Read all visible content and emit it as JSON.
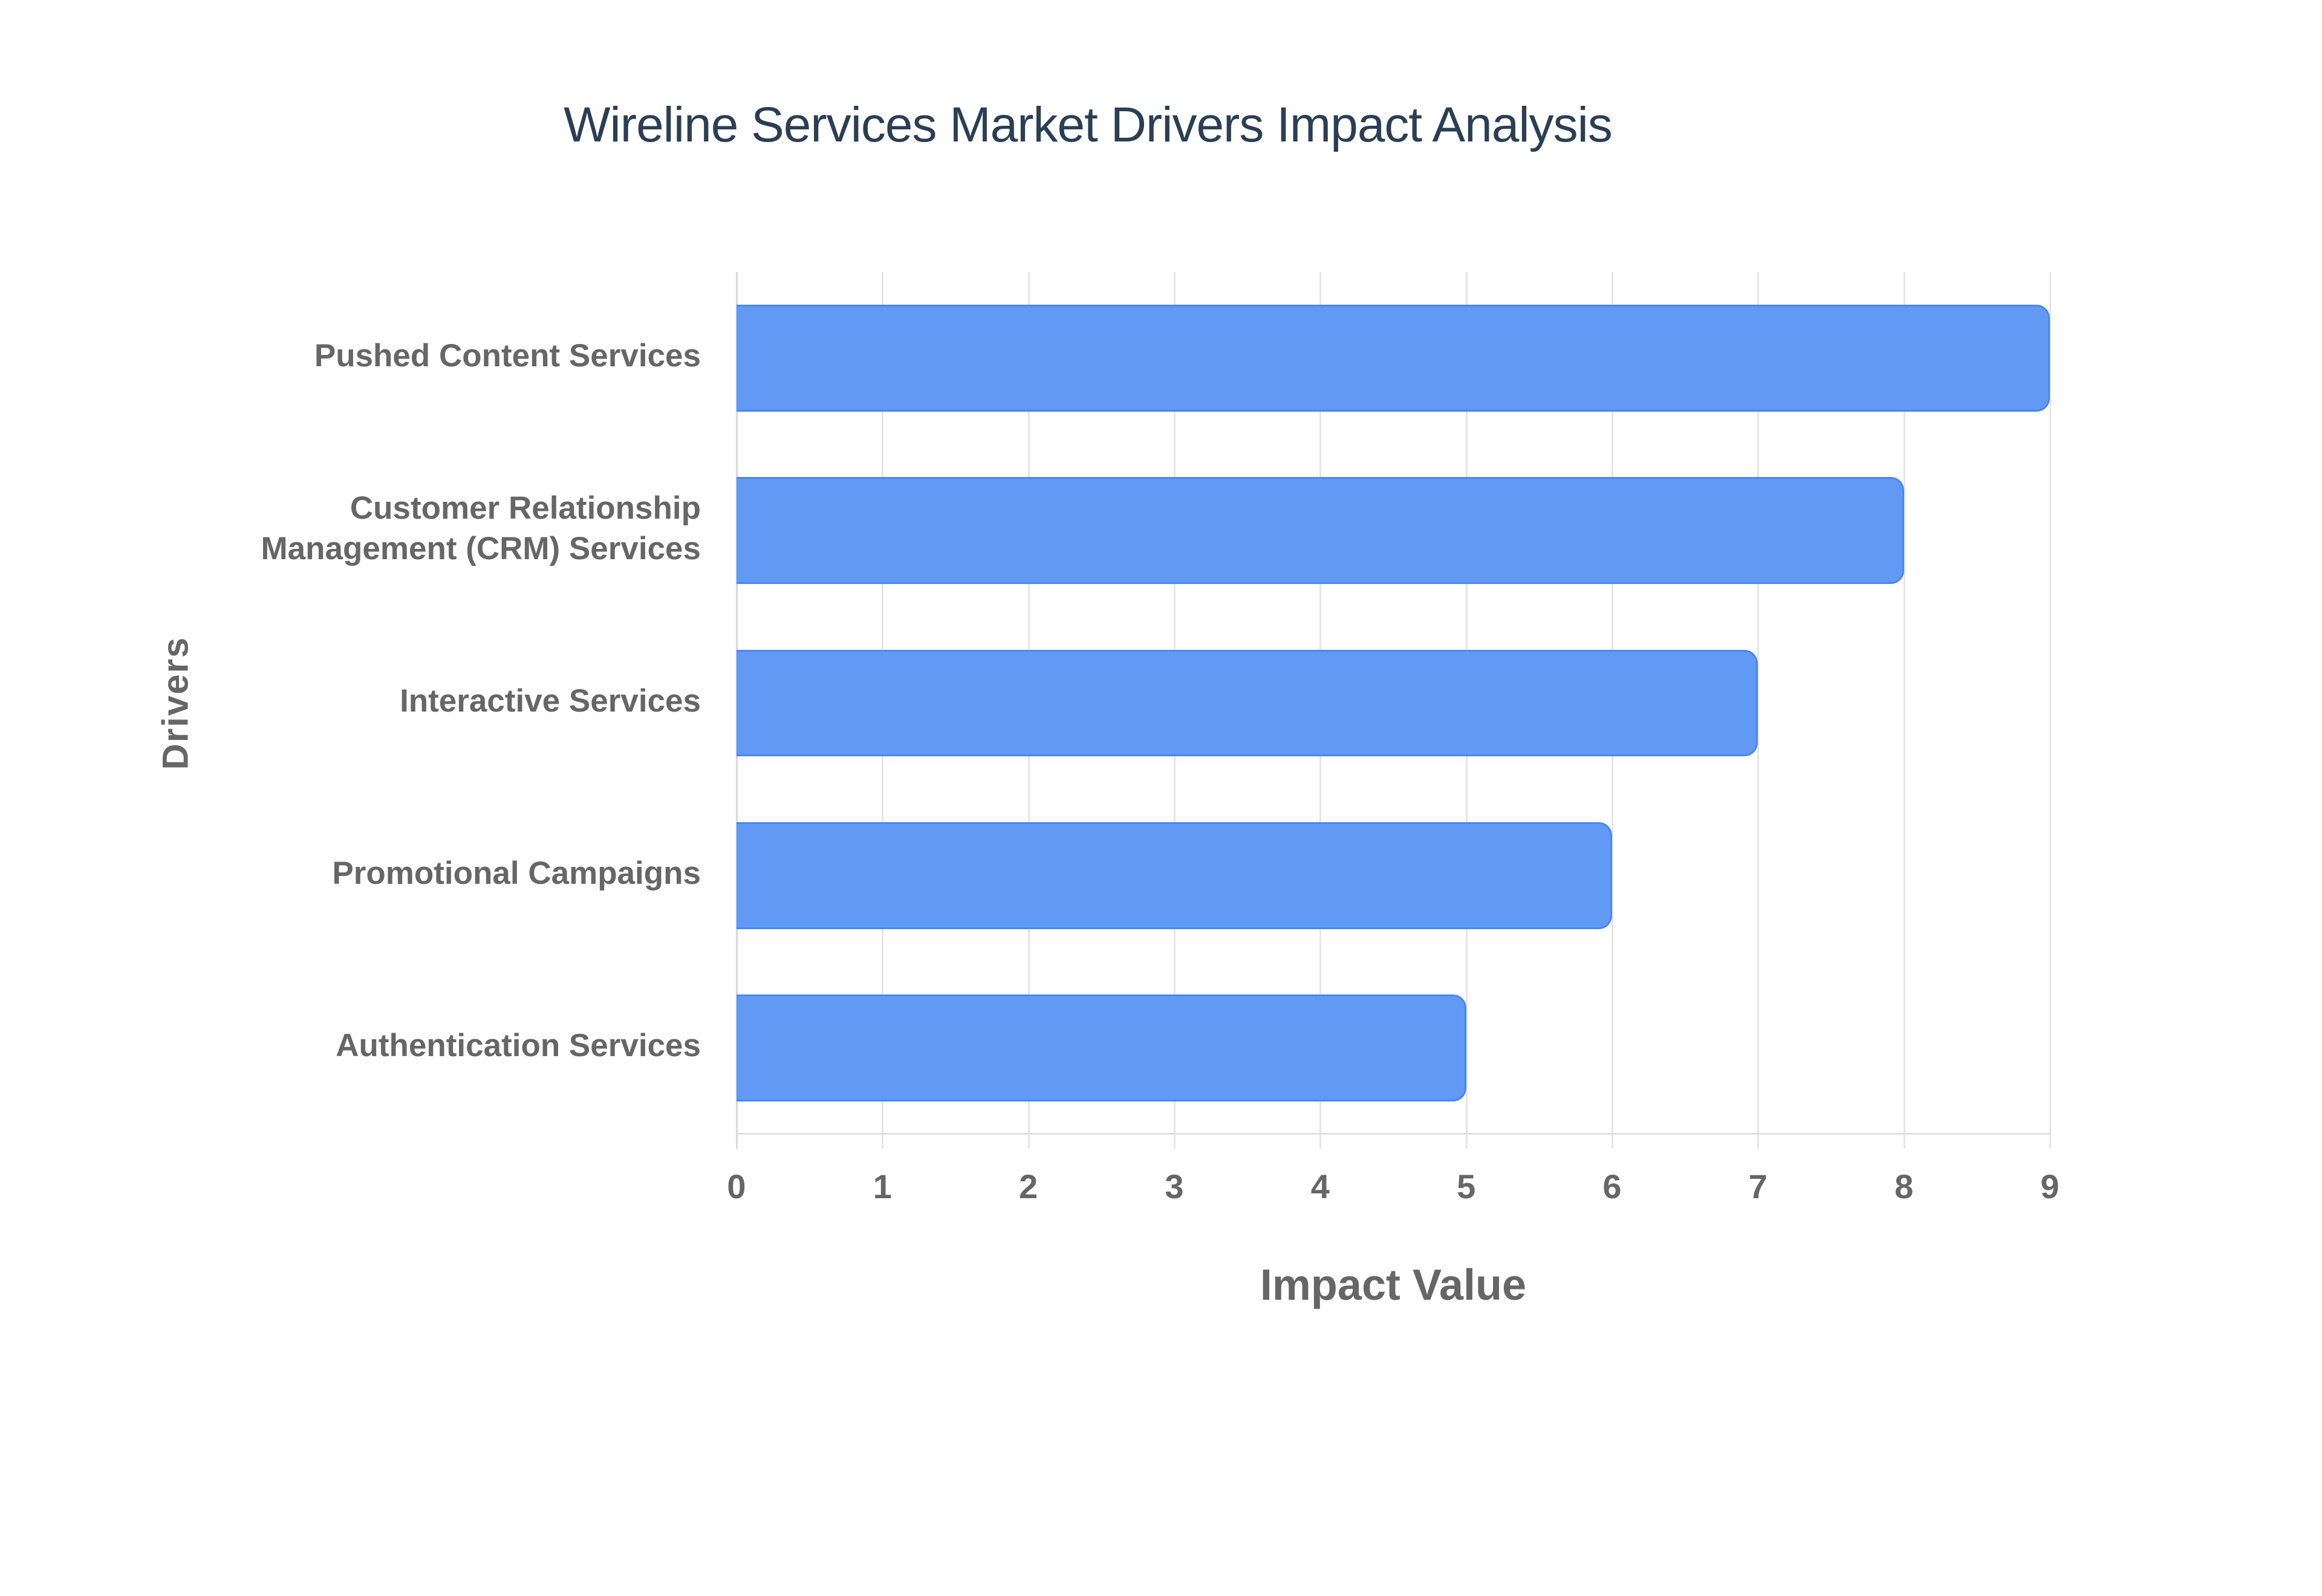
{
  "chart_data": {
    "type": "bar",
    "orientation": "horizontal",
    "title": "Wireline Services Market Drivers Impact Analysis",
    "xlabel": "Impact Value",
    "ylabel": "Drivers",
    "categories": [
      "Pushed Content Services",
      "Customer Relationship Management (CRM) Services",
      "Interactive Services",
      "Promotional Campaigns",
      "Authentication Services"
    ],
    "category_display_lines": [
      [
        "Pushed Content Services"
      ],
      [
        "Customer Relationship",
        "Management (CRM) Services"
      ],
      [
        "Interactive Services"
      ],
      [
        "Promotional Campaigns"
      ],
      [
        "Authentication Services"
      ]
    ],
    "values": [
      9,
      8,
      7,
      6,
      5
    ],
    "xlim": [
      0,
      9
    ],
    "x_ticks": [
      "0",
      "1",
      "2",
      "3",
      "4",
      "5",
      "6",
      "7",
      "8",
      "9"
    ],
    "grid": true,
    "legend": null,
    "colors": {
      "bar_fill": "#6199f5",
      "bar_border": "#4a86f0",
      "title": "#2a3f54",
      "axis_text": "#666666",
      "grid": "#e6e6e6"
    }
  },
  "header": {
    "title": "Wireline Services Market Drivers Impact Analysis"
  },
  "axes": {
    "x_title": "Impact Value",
    "y_title": "Drivers",
    "x_ticks": [
      "0",
      "1",
      "2",
      "3",
      "4",
      "5",
      "6",
      "7",
      "8",
      "9"
    ]
  },
  "bars": [
    {
      "label_lines": [
        "Pushed Content Services"
      ],
      "value": 9
    },
    {
      "label_lines": [
        "Customer Relationship",
        "Management (CRM) Services"
      ],
      "value": 8
    },
    {
      "label_lines": [
        "Interactive Services"
      ],
      "value": 7
    },
    {
      "label_lines": [
        "Promotional Campaigns"
      ],
      "value": 6
    },
    {
      "label_lines": [
        "Authentication Services"
      ],
      "value": 5
    }
  ]
}
